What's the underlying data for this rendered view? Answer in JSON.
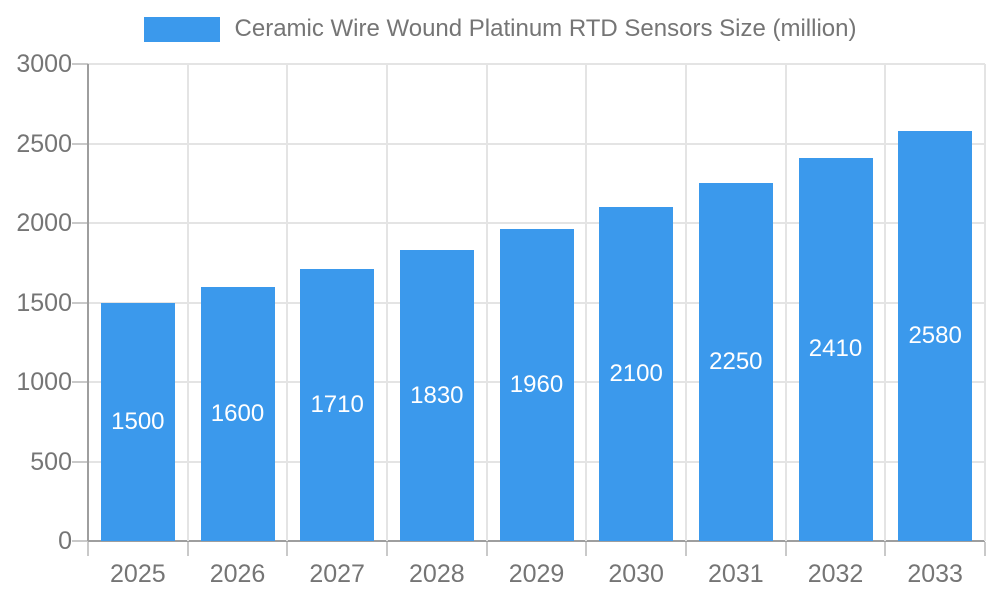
{
  "chart_data": {
    "type": "bar",
    "title": "Ceramic Wire Wound Platinum RTD Sensors Size (million)",
    "legend": [
      "Ceramic Wire Wound Platinum RTD Sensors Size (million)"
    ],
    "legend_position": "top-center",
    "categories": [
      "2025",
      "2026",
      "2027",
      "2028",
      "2029",
      "2030",
      "2031",
      "2032",
      "2033"
    ],
    "values": [
      1500,
      1600,
      1710,
      1830,
      1960,
      2100,
      2250,
      2410,
      2580
    ],
    "xlabel": "",
    "ylabel": "",
    "ylim": [
      0,
      3000
    ],
    "yticks": [
      0,
      500,
      1000,
      1500,
      2000,
      2500,
      3000
    ],
    "grid": true,
    "value_labels": "centered-inside-bars",
    "colors": {
      "bar": "#3B99EC",
      "value_label": "#FFFFFF",
      "axis_text": "#757575",
      "gridline": "#E4E4E4",
      "axis_line": "#9E9E9E",
      "tick": "#C9C9C9",
      "background": "#FFFFFF"
    }
  }
}
